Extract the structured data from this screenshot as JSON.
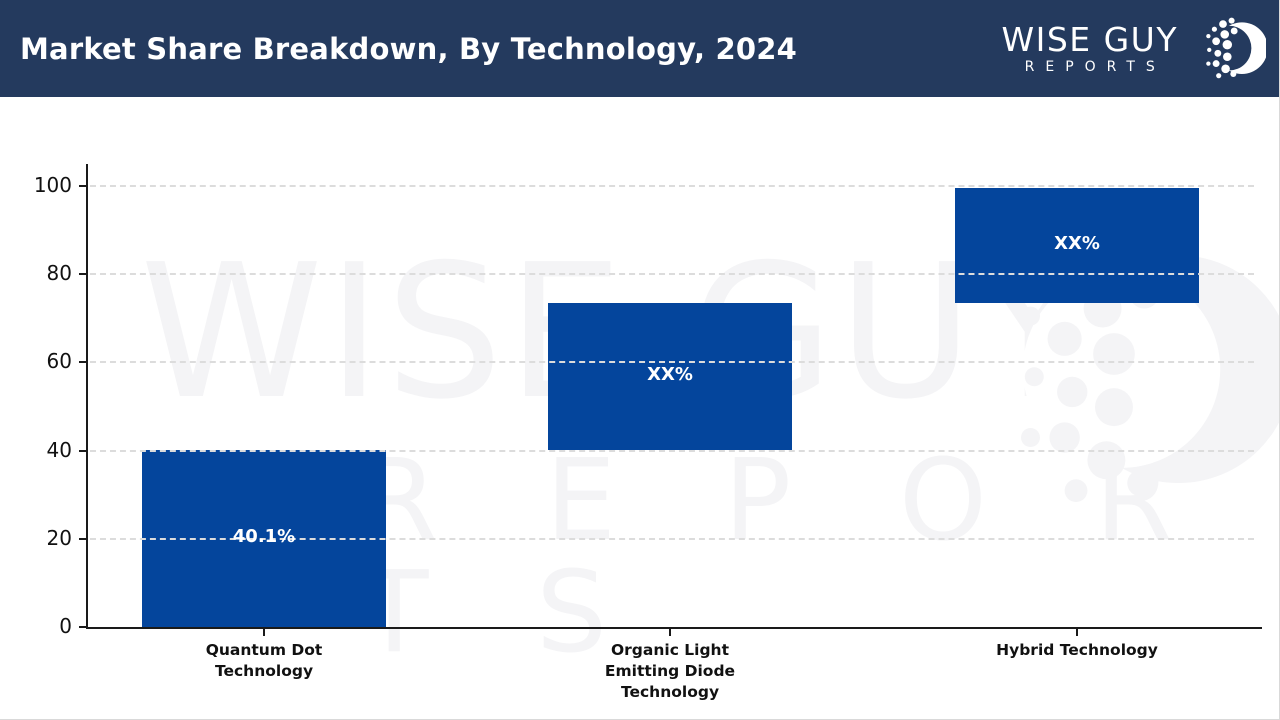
{
  "header": {
    "title": "Market Share Breakdown, By Technology, 2024",
    "logo": {
      "line1": "WISE GUY",
      "line2": "REPORTS",
      "icon": "dotted-face-profile"
    }
  },
  "watermark": {
    "line1": "WISE GUY",
    "line2": "R E P O R T S"
  },
  "colors": {
    "header_bg": "#243A5E",
    "bar_fill": "#04459C",
    "bar_label_text": "#FFFFFF",
    "gridline": "#DCDCDC",
    "axis": "#1A1A1A",
    "watermark": "#F4F4F6"
  },
  "chart_data": {
    "type": "bar",
    "subtype": "waterfall",
    "title": "Market Share Breakdown, By Technology, 2024",
    "categories": [
      "Quantum Dot\nTechnology",
      "Organic Light\nEmitting Diode\nTechnology",
      "Hybrid Technology"
    ],
    "segments": [
      {
        "category": "Quantum Dot Technology",
        "start": 0,
        "end": 40.1,
        "label": "40.1%"
      },
      {
        "category": "Organic Light Emitting Diode Technology",
        "start": 40.1,
        "end": 73.4,
        "label": "XX%"
      },
      {
        "category": "Hybrid Technology",
        "start": 73.4,
        "end": 99.5,
        "label": "XX%"
      }
    ],
    "y_ticks": [
      0,
      20,
      40,
      60,
      80,
      100
    ],
    "ylim": [
      0,
      105
    ],
    "xlabel": "",
    "ylabel": "",
    "grid": "horizontal-dashed, drawn above bars",
    "legend": "none"
  }
}
